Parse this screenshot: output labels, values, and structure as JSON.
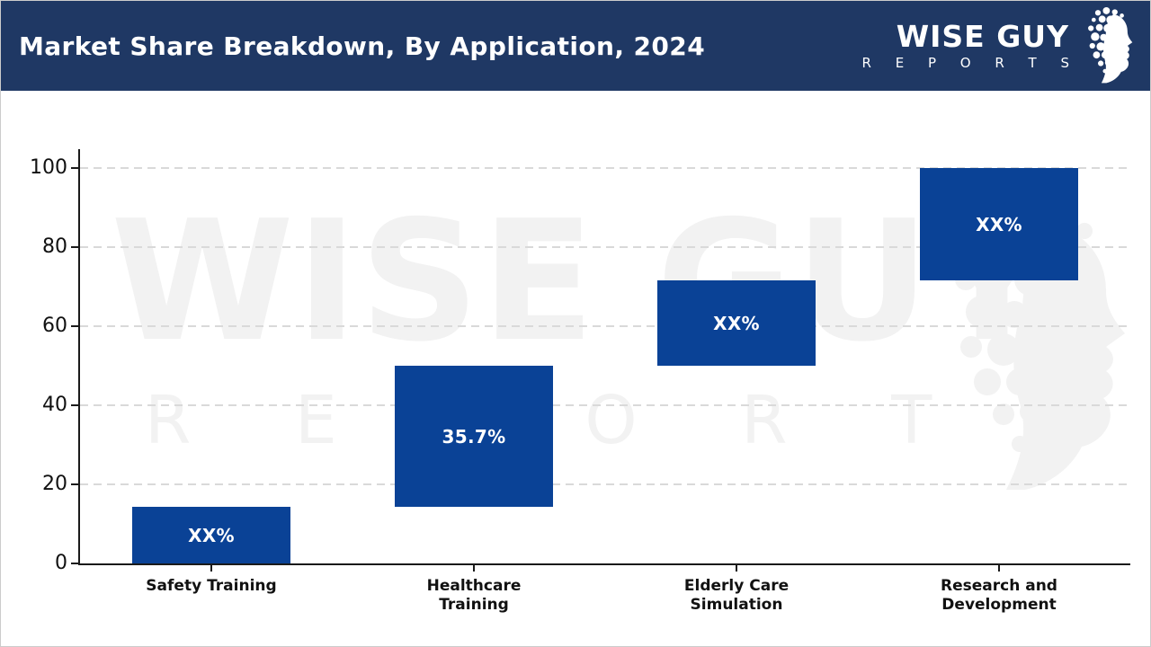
{
  "header": {
    "title": "Market Share Breakdown, By Application, 2024",
    "brand": {
      "line1": "WISE GUY",
      "line2": "R E P O R T S"
    }
  },
  "watermark": {
    "line1": "WISE GUY",
    "line2": "R E P O R T S"
  },
  "colors": {
    "header_bg": "#1f3864",
    "bar": "#0a4296",
    "bar_label": "#ffffff",
    "grid": "#d9d9d9",
    "axis": "#1a1a1a",
    "watermark": "#f2f2f2",
    "page_border": "#cccccc"
  },
  "chart_data": {
    "type": "bar",
    "variant": "waterfall",
    "title": "Market Share Breakdown, By Application, 2024",
    "categories": [
      [
        "Safety Training"
      ],
      [
        "Healthcare",
        "Training"
      ],
      [
        "Elderly Care",
        "Simulation"
      ],
      [
        "Research and",
        "Development"
      ]
    ],
    "bars": [
      {
        "category": "Safety Training",
        "start": 0,
        "end": 14.3,
        "value_label": "XX%"
      },
      {
        "category": "Healthcare Training",
        "start": 14.3,
        "end": 50,
        "value_label": "35.7%"
      },
      {
        "category": "Elderly Care Simulation",
        "start": 50,
        "end": 71.5,
        "value_label": "XX%"
      },
      {
        "category": "Research and Development",
        "start": 71.5,
        "end": 100,
        "value_label": "XX%"
      }
    ],
    "yticks": [
      0,
      20,
      40,
      60,
      80,
      100
    ],
    "ylim": [
      0,
      105
    ],
    "xlabel": "",
    "ylabel": "",
    "grid": "horizontal-dashed",
    "legend": null,
    "bar_color": "#0a4296",
    "value_label_color": "#ffffff"
  }
}
